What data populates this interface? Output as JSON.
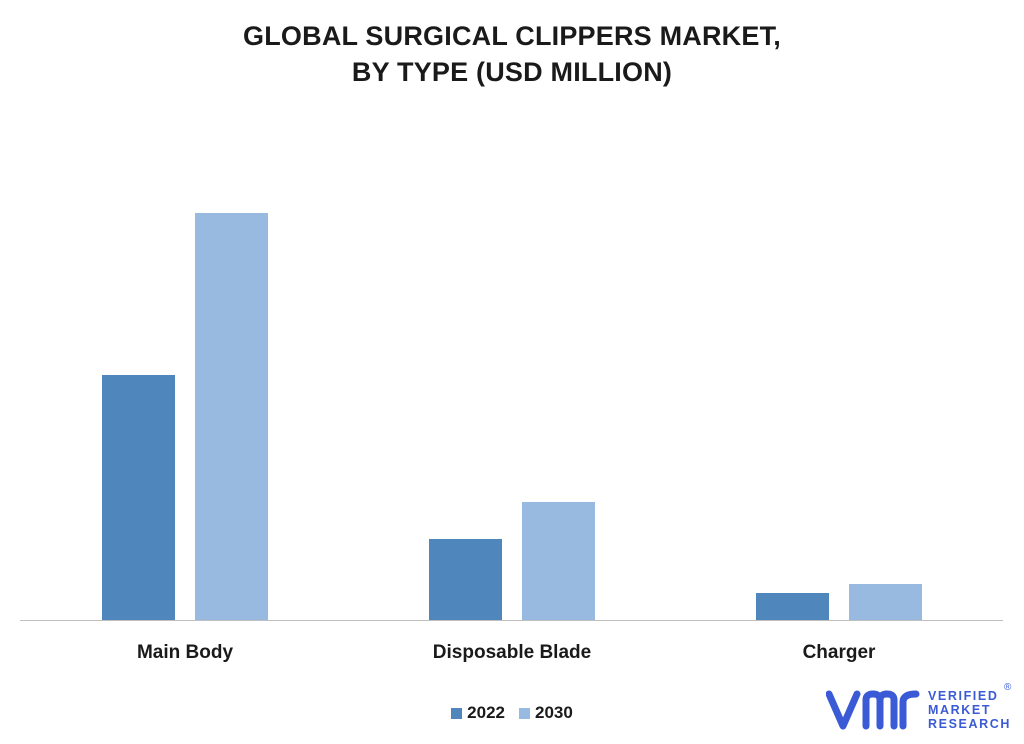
{
  "chart_data": {
    "type": "bar",
    "title": [
      "GLOBAL SURGICAL CLIPPERS MARKET,",
      "BY TYPE (USD MILLION)"
    ],
    "categories": [
      "Main Body",
      "Disposable Blade",
      "Charger"
    ],
    "series": [
      {
        "name": "2022",
        "color": "#4f86bb",
        "values": [
          245,
          81,
          27
        ]
      },
      {
        "name": "2030",
        "color": "#98b9e0",
        "values": [
          407,
          118,
          36
        ]
      }
    ],
    "ylim": [
      0,
      430
    ],
    "grid": false,
    "legend": "bottom-center"
  },
  "logo": {
    "lines": [
      "VERIFIED",
      "MARKET",
      "RESEARCH"
    ],
    "registered": "®",
    "color": "#3b5bd6"
  }
}
